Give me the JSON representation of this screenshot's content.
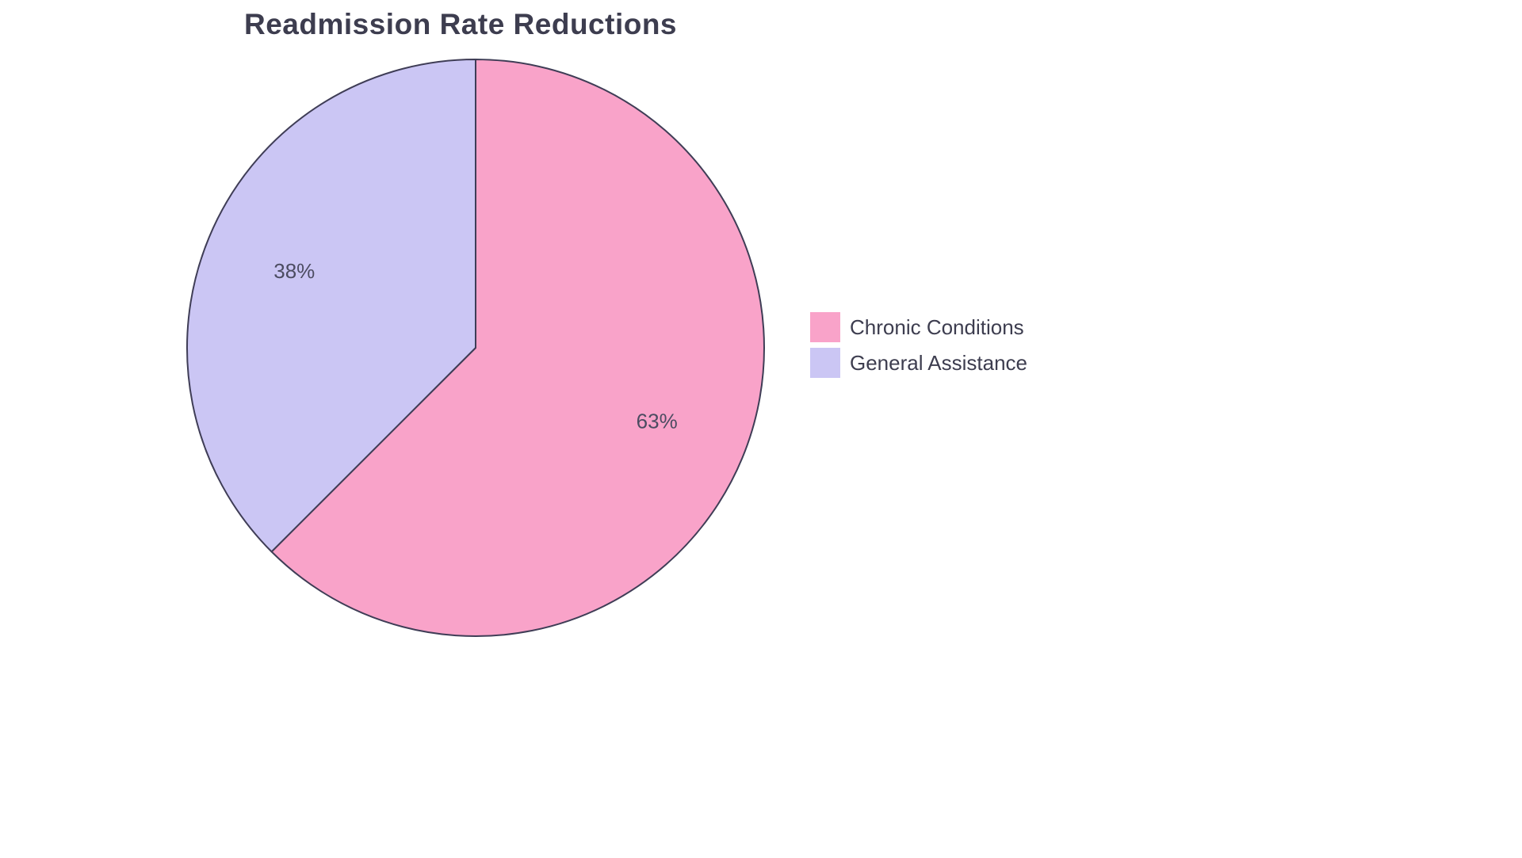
{
  "chart_data": {
    "type": "pie",
    "title": "Readmission Rate Reductions",
    "slices": [
      {
        "label": "Chronic Conditions",
        "display": "63%",
        "fraction": 0.625,
        "color": "#F9A3C9"
      },
      {
        "label": "General Assistance",
        "display": "38%",
        "fraction": 0.375,
        "color": "#CBC6F4"
      }
    ],
    "start_angle_deg": 0,
    "direction": "clockwise",
    "stroke_color": "#3F3D56",
    "stroke_width": 2,
    "legend_position": "right",
    "background": "#FFFFFF",
    "title_color": "#3D3D4F",
    "label_color": "#4C4C61"
  }
}
